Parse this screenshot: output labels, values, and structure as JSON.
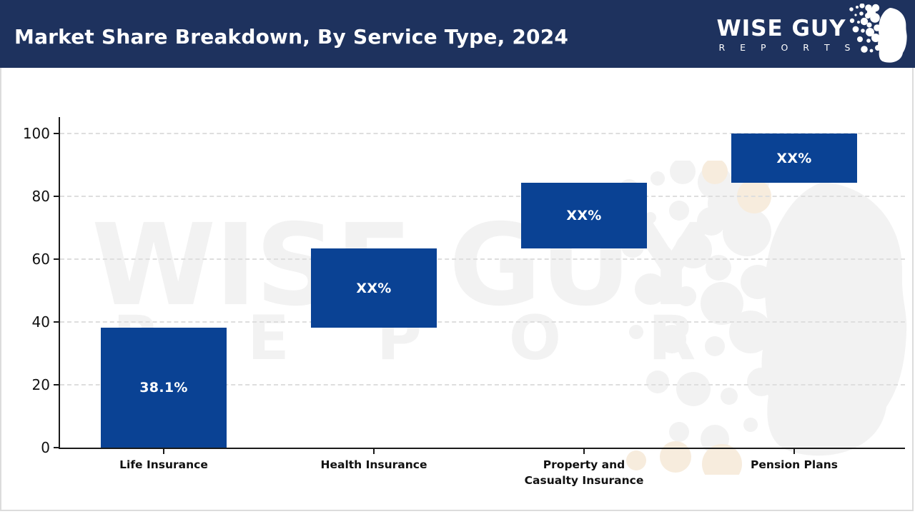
{
  "header": {
    "title": "Market Share Breakdown, By Service Type, 2024",
    "logo": {
      "line1": "WISE GUY",
      "line2": "R E P O R T S"
    }
  },
  "watermark": {
    "line1": "WISE GUY",
    "line2": "R E P O R T S"
  },
  "chart_data": {
    "type": "bar",
    "subtype": "waterfall-segments",
    "title": "Market Share Breakdown, By Service Type, 2024",
    "categories": [
      "Life Insurance",
      "Health Insurance",
      "Property and\nCasualty Insurance",
      "Pension Plans"
    ],
    "segments": [
      {
        "category": "Life Insurance",
        "start": 0,
        "end": 38.1,
        "label": "38.1%"
      },
      {
        "category": "Health Insurance",
        "start": 38.1,
        "end": 63.4,
        "label": "XX%"
      },
      {
        "category": "Property and Casualty Insurance",
        "start": 63.4,
        "end": 84.3,
        "label": "XX%"
      },
      {
        "category": "Pension Plans",
        "start": 84.3,
        "end": 100,
        "label": "XX%"
      }
    ],
    "yticks": [
      0,
      20,
      40,
      60,
      80,
      100
    ],
    "ylim": [
      0,
      100
    ],
    "xlabel": "",
    "ylabel": "",
    "grid": "horizontal-dashed",
    "legend": "none",
    "bar_color": "#0a4294",
    "bar_label_color": "#ffffff"
  },
  "colors": {
    "header_bg": "#1e325e",
    "bar": "#0a4294",
    "axis": "#1a1a1a",
    "gridline": "#dedede",
    "watermark": "#f2f2f2",
    "watermark_accent": "#f7ecdd",
    "frame_border": "#dcdcdc",
    "background": "#ffffff"
  }
}
